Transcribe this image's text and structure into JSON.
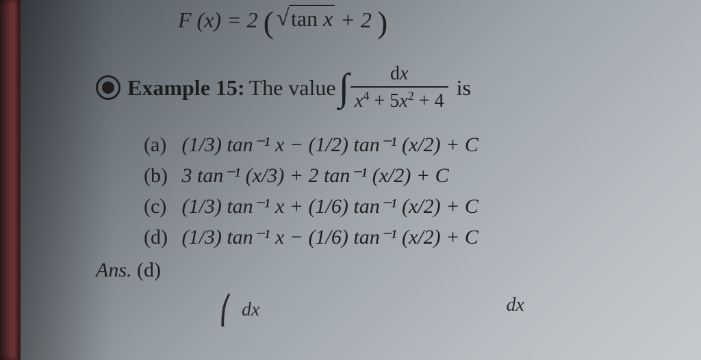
{
  "colors": {
    "text": "#1e1e1e",
    "spine_dark": "#2c1818",
    "spine_mid": "#7a3a3a",
    "bg_light": "#c5cacc",
    "bg_dark": "#4a5258"
  },
  "typography": {
    "body_fontsize_pt": 22,
    "example_fontsize_pt": 24,
    "font_family": "Times New Roman (serif)"
  },
  "top_equation": {
    "lhs": "F (x) = 2",
    "sqrt_content_pre": "tan ",
    "sqrt_content_var": "x",
    "after_sqrt": " + 2"
  },
  "example": {
    "label": "Example 15:",
    "prefix": " The value ",
    "integral_symbol": "∫",
    "numerator_d": "d",
    "numerator_x": "x",
    "denominator_plain": "x⁴ + 5x² + 4",
    "denom_term1_var": "x",
    "denom_term1_exp": "4",
    "denom_plus1": " + 5",
    "denom_term2_var": "x",
    "denom_term2_exp": "2",
    "denom_plus2": " + 4",
    "suffix": " is"
  },
  "options": [
    {
      "tag": "(a)",
      "expr": "(1/3) tan⁻¹ x − (1/2) tan⁻¹ (x/2) + C"
    },
    {
      "tag": "(b)",
      "expr": "3 tan⁻¹ (x/3) + 2 tan⁻¹ (x/2) + C"
    },
    {
      "tag": "(c)",
      "expr": "(1/3) tan⁻¹ x + (1/6) tan⁻¹ (x/2) + C"
    },
    {
      "tag": "(d)",
      "expr": "(1/3) tan⁻¹ x − (1/6) tan⁻¹ (x/2) + C"
    }
  ],
  "answer": {
    "label": "Ans.",
    "value": " (d)"
  },
  "bottom": {
    "left": "dx",
    "right": "dx"
  }
}
